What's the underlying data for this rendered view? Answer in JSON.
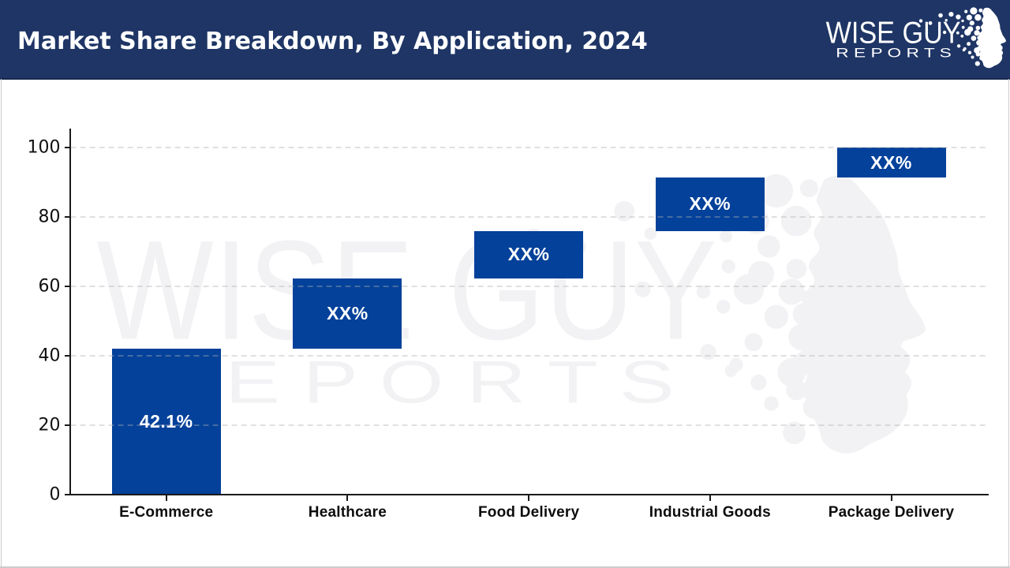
{
  "header": {
    "title": "Market Share Breakdown, By Application, 2024",
    "logo": {
      "title": "WISE GUY",
      "subtitle": "R E P O R T S"
    }
  },
  "watermark": {
    "title": "WISE GUY",
    "subtitle": "R E P O R T S"
  },
  "colors": {
    "header_bg": "#1e3565",
    "header_edge": "#16294e",
    "bar": "#03419a",
    "grid": "#b0b0b0",
    "axis": "#1a1a1a",
    "tick_label": "#111111",
    "bar_label": "#ffffff",
    "watermark": "#f2f2f4",
    "frame": "#cccccc",
    "logo": "#ffffff"
  },
  "chart_data": {
    "type": "bar",
    "subtype": "waterfall",
    "title": "Market Share Breakdown, By Application, 2024",
    "xlabel": "",
    "ylabel": "",
    "categories": [
      "E-Commerce",
      "Healthcare",
      "Food Delivery",
      "Industrial Goods",
      "Package Delivery"
    ],
    "series": [
      {
        "name": "Market share (%)",
        "segments": [
          {
            "category": "E-Commerce",
            "start": 0,
            "end": 42.1,
            "label": "42.1%"
          },
          {
            "category": "Healthcare",
            "start": 42.1,
            "end": 62.2,
            "label": "XX%"
          },
          {
            "category": "Food Delivery",
            "start": 62.2,
            "end": 76.0,
            "label": "XX%"
          },
          {
            "category": "Industrial Goods",
            "start": 76.0,
            "end": 91.3,
            "label": "XX%"
          },
          {
            "category": "Package Delivery",
            "start": 91.3,
            "end": 100.0,
            "label": "XX%"
          }
        ]
      }
    ],
    "yticks": [
      0,
      20,
      40,
      60,
      80,
      100
    ],
    "ylim": [
      0,
      105.7
    ],
    "grid": "dashed-horizontal",
    "legend_position": "none"
  }
}
